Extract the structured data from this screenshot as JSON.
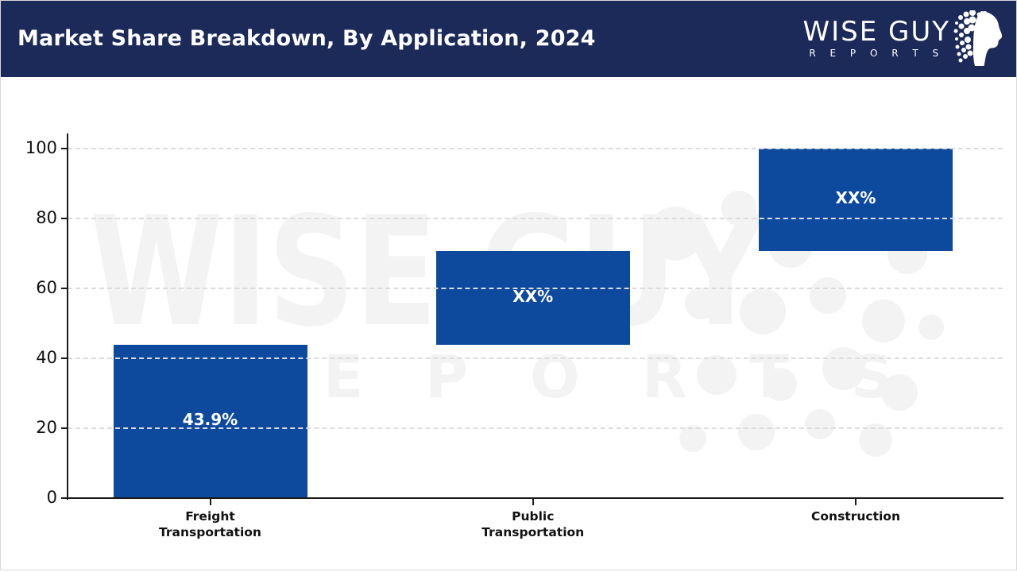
{
  "header": {
    "title": "Market Share Breakdown, By Application, 2024",
    "logo": {
      "brand": "WISE GUY",
      "sub": "R E P O R T S",
      "face_icon": "dotted-head-profile"
    }
  },
  "watermark": {
    "line1": "WISE GUY",
    "line2": "R E P O R T S"
  },
  "colors": {
    "header_bg": "#1b2a58",
    "bar_fill": "#0d4a9e",
    "bar_label": "#ffffff",
    "grid_line": "#dcdcdc",
    "axis_line": "#1a1a1a",
    "tick_label": "#111111",
    "watermark": "#f3f3f3",
    "page_border": "#d9d9d9",
    "background": "#ffffff"
  },
  "chart_data": {
    "type": "bar",
    "variant": "floating-waterfall-segments",
    "title": "Market Share Breakdown, By Application, 2024",
    "categories": [
      "Freight Transportation",
      "Public Transportation",
      "Construction"
    ],
    "bars": [
      {
        "category": "Freight Transportation",
        "label_lines": [
          "Freight",
          "Transportation"
        ],
        "start": 0,
        "end": 43.9,
        "value_label": "43.9%"
      },
      {
        "category": "Public Transportation",
        "label_lines": [
          "Public",
          "Transportation"
        ],
        "start": 43.9,
        "end": 70.7,
        "value_label": "XX%"
      },
      {
        "category": "Construction",
        "label_lines": [
          "Construction"
        ],
        "start": 70.7,
        "end": 100,
        "value_label": "XX%"
      }
    ],
    "xlabel": "",
    "ylabel": "",
    "ylim": [
      0,
      100
    ],
    "yticks": [
      0,
      20,
      40,
      60,
      80,
      100
    ],
    "grid": "horizontal-dashed",
    "legend": "none",
    "bar_color": "#0d4a9e"
  }
}
